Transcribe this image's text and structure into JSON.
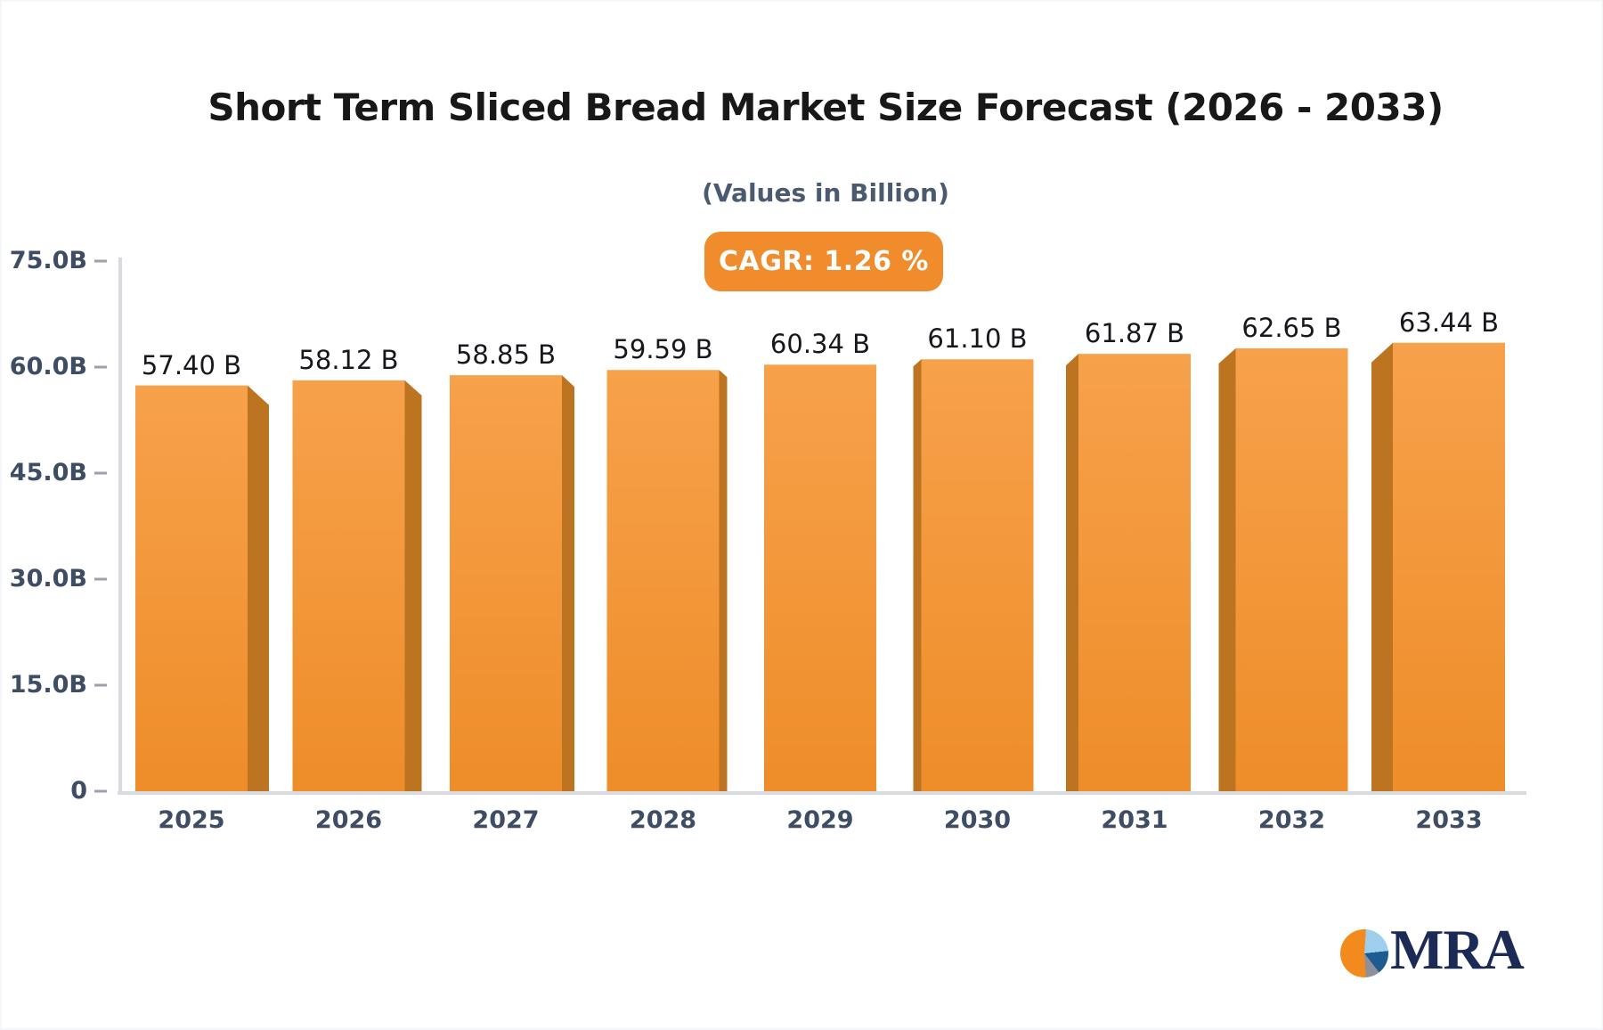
{
  "title": "Short Term Sliced Bread Market Size Forecast (2026 - 2033)",
  "subtitle": "(Values in Billion)",
  "badge": {
    "label": "CAGR: 1.26 %"
  },
  "logo": {
    "text": "MRA",
    "pie_icon_colors": [
      "#f28a1e",
      "#9fcfed",
      "#1d5c91",
      "#90909a"
    ]
  },
  "colors": {
    "bar_face_top": "#f7a14b",
    "bar_face_bottom": "#ee8d29",
    "bar_side": "#bd7420",
    "badge_bg": "#f08c2b",
    "axis_line": "#d8dae0",
    "tick_mark": "#9aa2ae",
    "tick_label": "#3e4d63",
    "value_label": "#17181c",
    "title_color": "#181818",
    "subtitle_color": "#4a5a70",
    "logo_navy": "#1c2b56"
  },
  "chart_data": {
    "type": "bar",
    "title": "Short Term Sliced Bread Market Size Forecast (2026 - 2033)",
    "subtitle": "(Values in Billion)",
    "annotation": "CAGR: 1.26 %",
    "categories": [
      "2025",
      "2026",
      "2027",
      "2028",
      "2029",
      "2030",
      "2031",
      "2032",
      "2033"
    ],
    "values": [
      57.4,
      58.12,
      58.85,
      59.59,
      60.34,
      61.1,
      61.87,
      62.65,
      63.44
    ],
    "value_labels": [
      "57.40 B",
      "58.12 B",
      "58.85 B",
      "59.59 B",
      "60.34 B",
      "61.10 B",
      "61.87 B",
      "62.65 B",
      "63.44 B"
    ],
    "xlabel": "",
    "ylabel": "",
    "ylim": [
      0,
      75
    ],
    "y_tick_values": [
      0,
      15,
      30,
      45,
      60,
      75
    ],
    "y_tick_labels": [
      "0",
      "15.0B",
      "30.0B",
      "45.0B",
      "60.0B",
      "75.0B"
    ],
    "grid": "off",
    "legend": "none",
    "style": "3d-perspective-bars-orange"
  }
}
